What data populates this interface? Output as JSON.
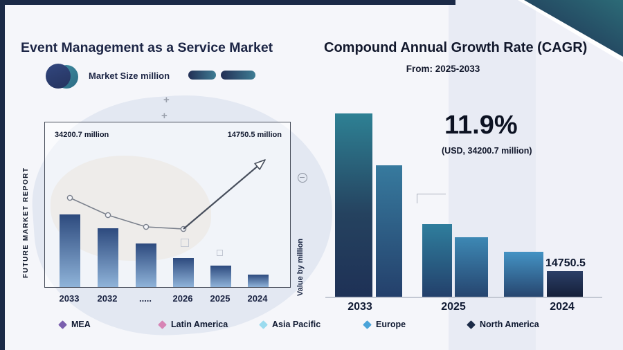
{
  "chart_data": [
    {
      "type": "bar",
      "title": "Event Management as a Service Market",
      "series_name": "Market Size million",
      "categories": [
        "2033",
        "2032",
        ".....",
        "2026",
        "2025",
        "2024"
      ],
      "values": [
        34200.7,
        30600,
        24200,
        18500,
        16500,
        14750.5
      ],
      "unit": "USD million",
      "annotation_left": "34200.7 million",
      "annotation_right": "14750.5 million",
      "side_label": "FUTURE MARKET REPORT",
      "ylim": [
        0,
        36000
      ],
      "grid": false,
      "note": "Bars descend from 2033 to 2024; gray marker line with large upward arrow overlay; intermediate values estimated"
    },
    {
      "type": "bar",
      "title": "Compound Annual Growth Rate (CAGR)",
      "subtitle": "From: 2025-2033",
      "cagr_value": "11.9%",
      "cagr_basis": "(USD, 34200.7 million)",
      "categories": [
        "2033",
        "2025",
        "2024"
      ],
      "series": [
        {
          "name": "upper",
          "values": [
            34200.7,
            13550,
            8390
          ]
        },
        {
          "name": "lower",
          "values": [
            24500,
            11100,
            4800
          ]
        }
      ],
      "data_label": "14750.5",
      "data_label_category": "2024",
      "ylabel": "Value by million",
      "grid": false,
      "note": "Paired gradient bars per year; values estimated from bar heights"
    }
  ],
  "legend": [
    {
      "label": "MEA",
      "color": "#7a5fae"
    },
    {
      "label": "Latin America",
      "color": "#d784b5"
    },
    {
      "label": "Asia Pacific",
      "color": "#9adbef"
    },
    {
      "label": "Europe",
      "color": "#4aa4d9"
    },
    {
      "label": "North America",
      "color": "#1c2b47"
    }
  ],
  "icons": {
    "plus": "+"
  }
}
